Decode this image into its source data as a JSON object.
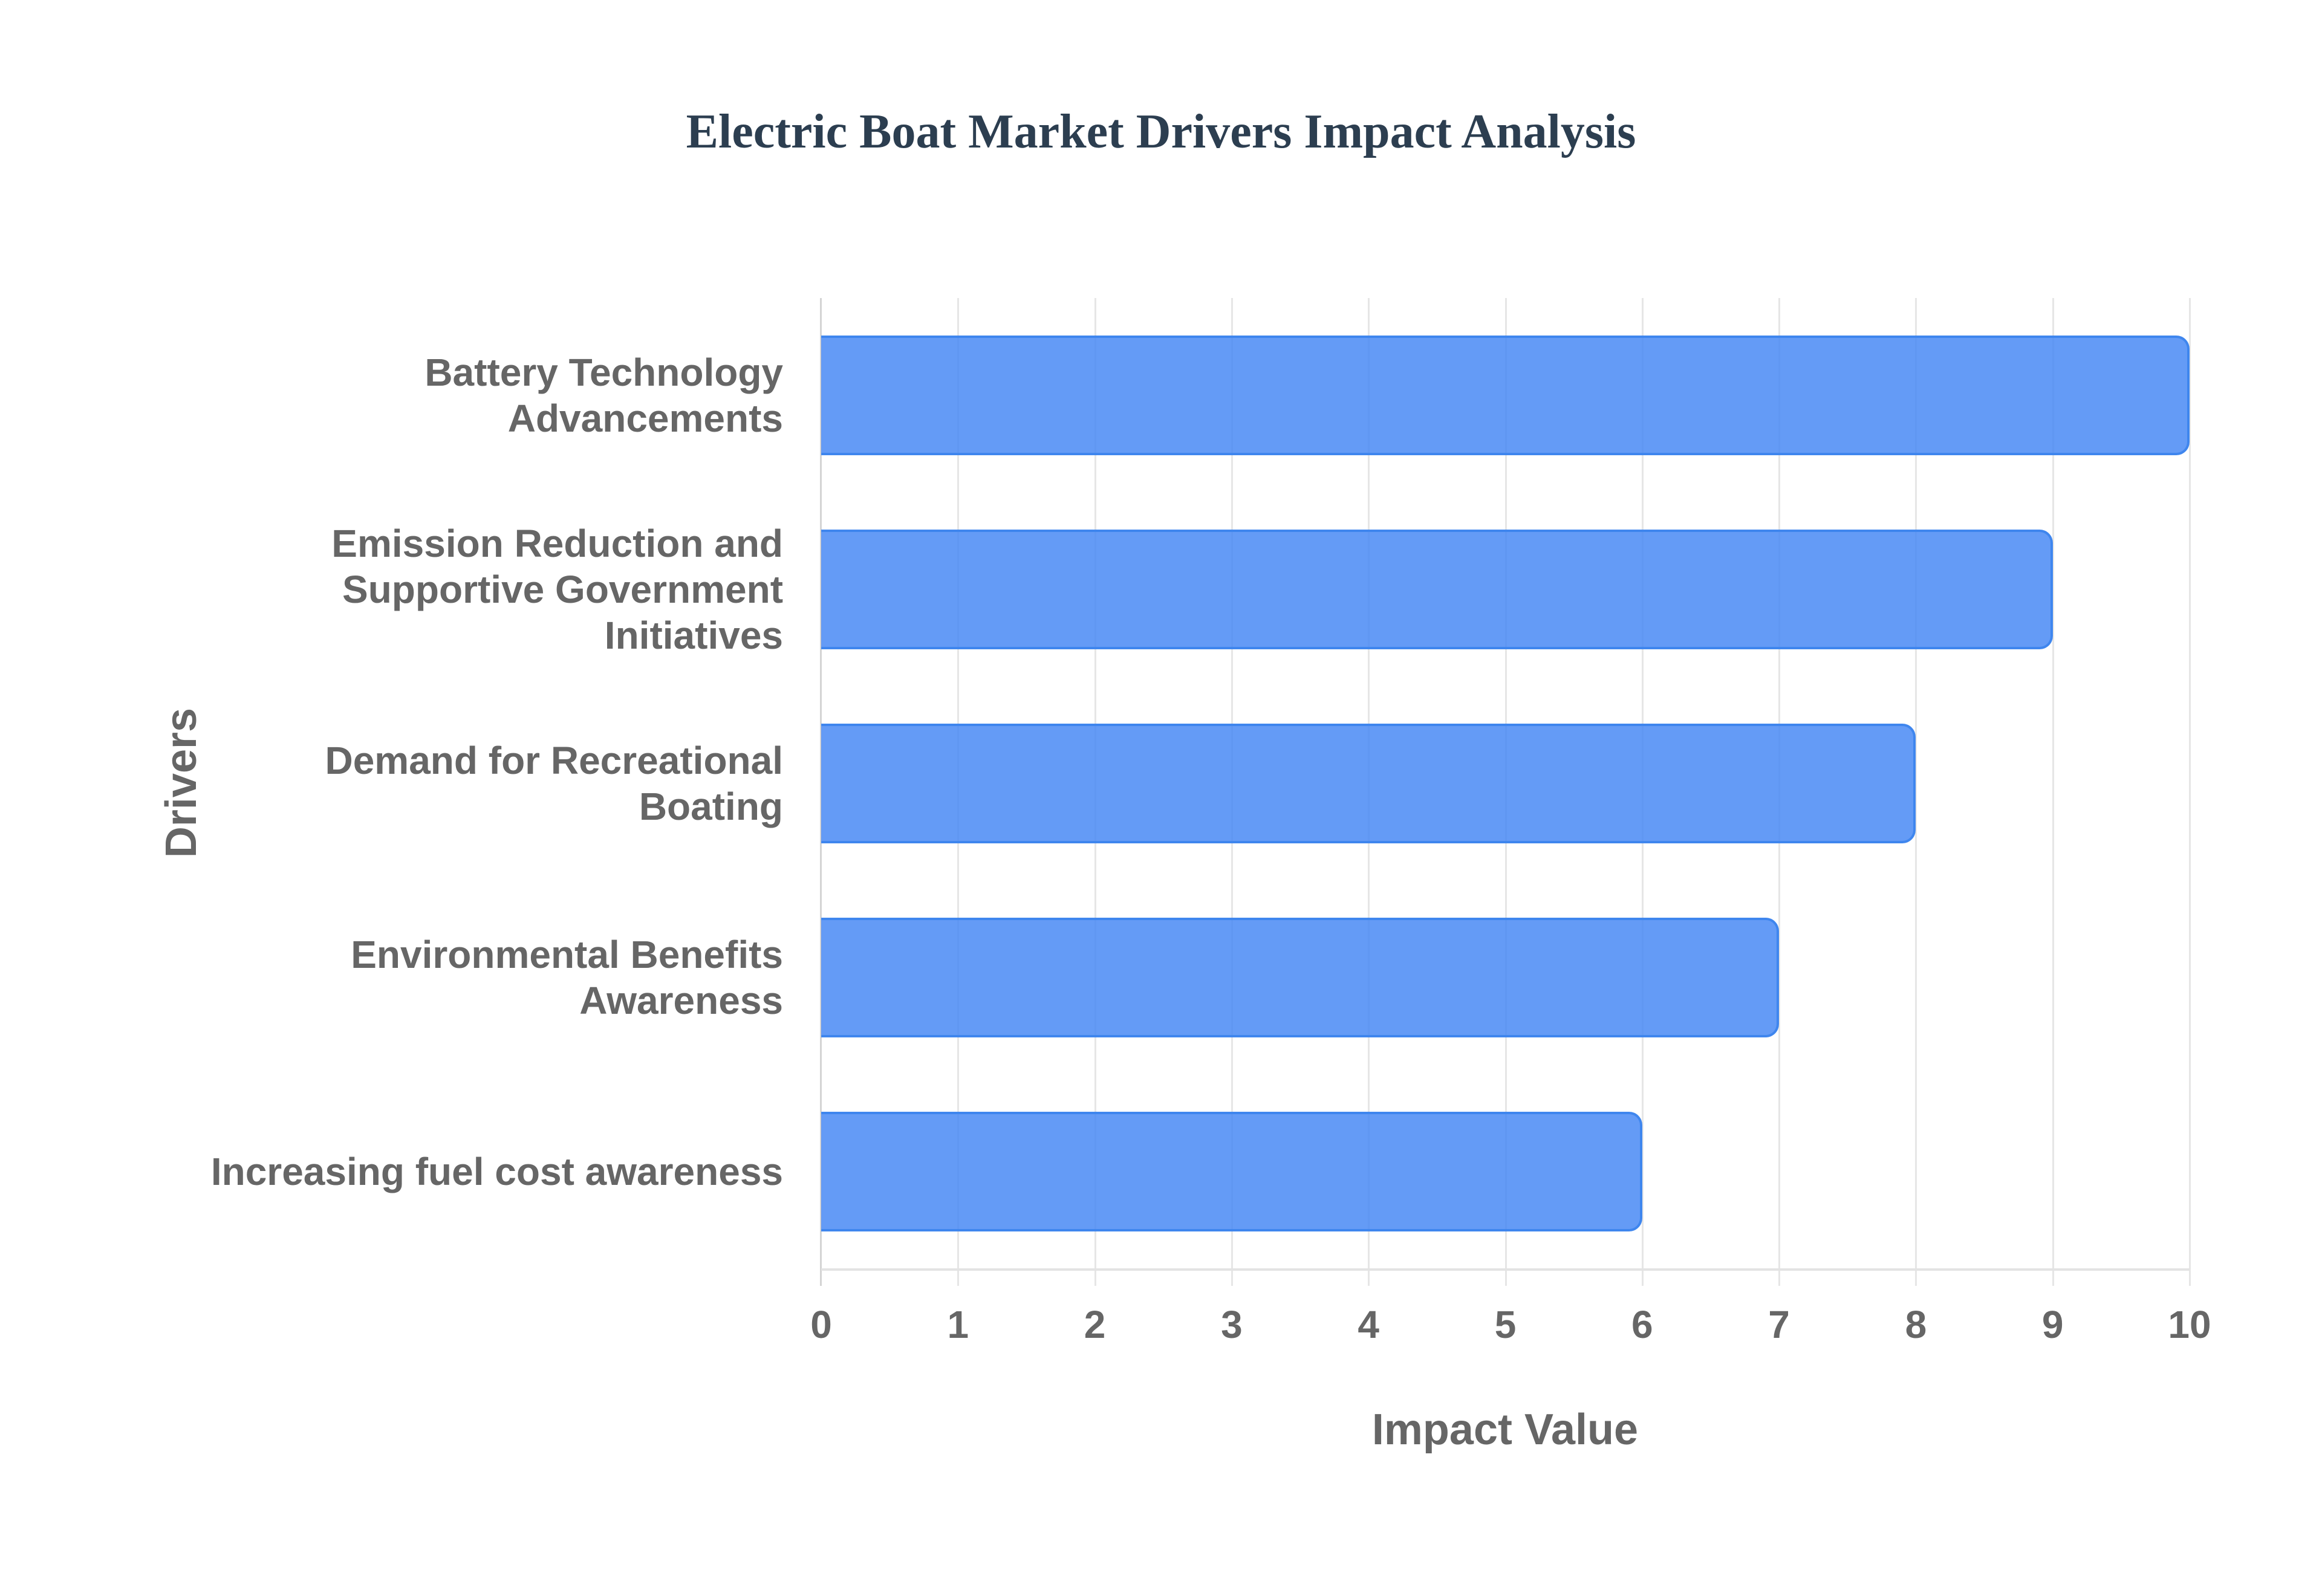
{
  "chart_data": {
    "type": "bar",
    "orientation": "horizontal",
    "title": "Electric Boat Market Drivers Impact Analysis",
    "xlabel": "Impact Value",
    "ylabel": "Drivers",
    "categories": [
      "Battery Technology Advancements",
      "Emission Reduction and Supportive Government Initiatives",
      "Demand for Recreational Boating",
      "Environmental Benefits Awareness",
      "Increasing fuel cost awareness"
    ],
    "values": [
      10,
      9,
      8,
      7,
      6
    ],
    "xlim": [
      0,
      10
    ],
    "xticks": [
      "0",
      "1",
      "2",
      "3",
      "4",
      "5",
      "6",
      "7",
      "8",
      "9",
      "10"
    ],
    "grid": true,
    "legend": "none",
    "bar_color": "#6199F4",
    "bar_border_color": "#3F86EE"
  },
  "title": "Electric Boat Market Drivers Impact Analysis",
  "axes": {
    "x_title": "Impact Value",
    "y_title": "Drivers",
    "x_ticks": [
      "0",
      "1",
      "2",
      "3",
      "4",
      "5",
      "6",
      "7",
      "8",
      "9",
      "10"
    ]
  },
  "bars": [
    {
      "label_lines": [
        "Battery Technology",
        "Advancements"
      ],
      "value": 10
    },
    {
      "label_lines": [
        "Emission Reduction and",
        "Supportive Government",
        "Initiatives"
      ],
      "value": 9
    },
    {
      "label_lines": [
        "Demand for Recreational",
        "Boating"
      ],
      "value": 8
    },
    {
      "label_lines": [
        "Environmental Benefits",
        "Awareness"
      ],
      "value": 7
    },
    {
      "label_lines": [
        "Increasing fuel cost awareness"
      ],
      "value": 6
    }
  ]
}
